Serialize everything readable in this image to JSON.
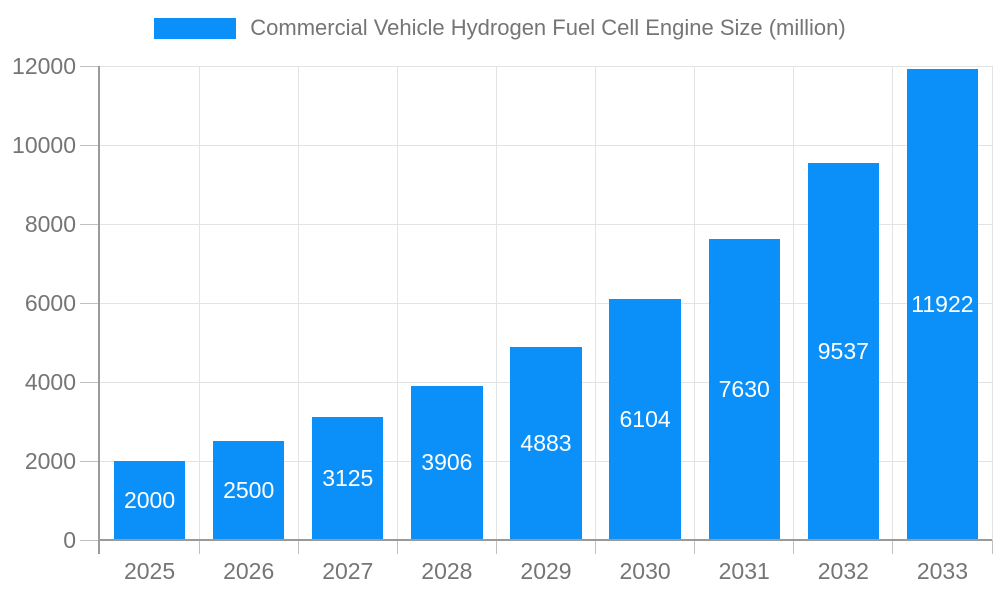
{
  "chart_data": {
    "type": "bar",
    "title": "Commercial Vehicle Hydrogen Fuel Cell Engine Size (million)",
    "categories": [
      "2025",
      "2026",
      "2027",
      "2028",
      "2029",
      "2030",
      "2031",
      "2032",
      "2033"
    ],
    "values": [
      2000,
      2500,
      3125,
      3906,
      4883,
      6104,
      7630,
      9537,
      11922
    ],
    "xlabel": "",
    "ylabel": "",
    "ylim": [
      0,
      12000
    ],
    "yticks": [
      0,
      2000,
      4000,
      6000,
      8000,
      10000,
      12000
    ],
    "grid": true,
    "legend_position": "top",
    "bar_labels_position": "inside-center",
    "colors": {
      "bar": "#0a90f8",
      "grid": "#e3e3e3",
      "axis": "#9a9a9a",
      "tick": "#c0c0c0",
      "text": "#757575",
      "value_label": "#ffffff",
      "background": "#ffffff"
    }
  }
}
